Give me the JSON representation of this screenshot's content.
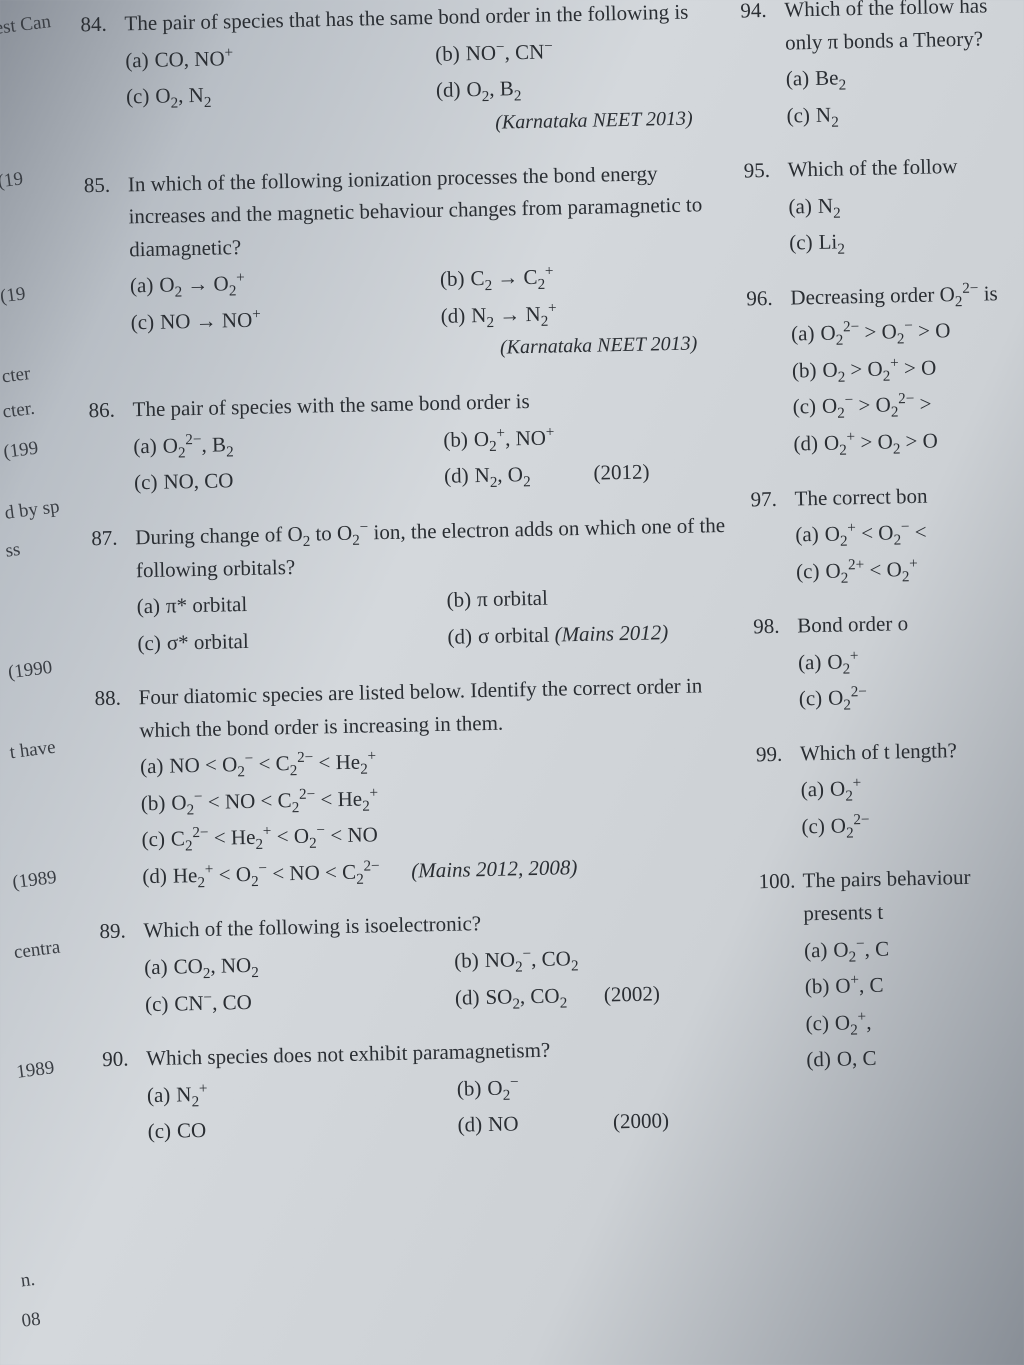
{
  "leftEdge": [
    "est Can",
    "(19",
    "(19",
    "cter",
    "cter.",
    "(199",
    "d by sp",
    "ss",
    "(1990",
    "t have",
    "(1989",
    "centra",
    "1989",
    "n.",
    "08"
  ],
  "questions": {
    "q84": {
      "num": "84.",
      "stem": "The pair of species that has the same bond order in the following is",
      "opts": [
        {
          "l": "(a)",
          "t": "CO, NO<sup>+</sup>"
        },
        {
          "l": "(b)",
          "t": "NO<sup>−</sup>, CN<sup>−</sup>"
        },
        {
          "l": "(c)",
          "t": "O<sub>2</sub>, N<sub>2</sub>"
        },
        {
          "l": "(d)",
          "t": "O<sub>2</sub>, B<sub>2</sub>"
        }
      ],
      "src": "(Karnataka NEET 2013)"
    },
    "q85": {
      "num": "85.",
      "stem": "In which of the following ionization processes the bond energy increases and the magnetic behaviour changes from paramagnetic to diamagnetic?",
      "opts": [
        {
          "l": "(a)",
          "t": "O<sub>2</sub> → O<sub>2</sub><sup>+</sup>"
        },
        {
          "l": "(b)",
          "t": "C<sub>2</sub> → C<sub>2</sub><sup>+</sup>"
        },
        {
          "l": "(c)",
          "t": "NO → NO<sup>+</sup>"
        },
        {
          "l": "(d)",
          "t": "N<sub>2</sub> → N<sub>2</sub><sup>+</sup>"
        }
      ],
      "src": "(Karnataka NEET 2013)"
    },
    "q86": {
      "num": "86.",
      "stem": "The pair of species with the same bond order is",
      "opts": [
        {
          "l": "(a)",
          "t": "O<sub>2</sub><sup>2−</sup>, B<sub>2</sub>"
        },
        {
          "l": "(b)",
          "t": "O<sub>2</sub><sup>+</sup>, NO<sup>+</sup>"
        },
        {
          "l": "(c)",
          "t": "NO, CO"
        },
        {
          "l": "(d)",
          "t": "N<sub>2</sub>, O<sub>2</sub>&nbsp;&nbsp;&nbsp;&nbsp;&nbsp;&nbsp;&nbsp;&nbsp;&nbsp;&nbsp;&nbsp;&nbsp;(2012)"
        }
      ]
    },
    "q87": {
      "num": "87.",
      "stem": "During change of O<sub>2</sub> to O<sub>2</sub><sup>−</sup> ion, the electron adds on which one of the following orbitals?",
      "opts": [
        {
          "l": "(a)",
          "t": "π* orbital"
        },
        {
          "l": "(b)",
          "t": "π orbital"
        },
        {
          "l": "(c)",
          "t": "σ* orbital"
        },
        {
          "l": "(d)",
          "t": "σ orbital <i>(Mains 2012)</i>"
        }
      ]
    },
    "q88": {
      "num": "88.",
      "stem": "Four diatomic species are listed below. Identify the correct order in which the bond order is increasing in them.",
      "opts": [
        {
          "l": "(a)",
          "t": "NO &lt; O<sub>2</sub><sup>−</sup> &lt; C<sub>2</sub><sup>2−</sup> &lt; He<sub>2</sub><sup>+</sup>"
        },
        {
          "l": "(b)",
          "t": "O<sub>2</sub><sup>−</sup> &lt; NO &lt; C<sub>2</sub><sup>2−</sup> &lt; He<sub>2</sub><sup>+</sup>"
        },
        {
          "l": "(c)",
          "t": "C<sub>2</sub><sup>2−</sup> &lt; He<sub>2</sub><sup>+</sup> &lt; O<sub>2</sub><sup>−</sup> &lt; NO"
        },
        {
          "l": "(d)",
          "t": "He<sub>2</sub><sup>+</sup> &lt; O<sub>2</sub><sup>−</sup> &lt; NO &lt; C<sub>2</sub><sup>2−</sup>&nbsp;&nbsp;&nbsp;&nbsp;&nbsp;&nbsp;<i>(Mains 2012, 2008)</i>"
        }
      ],
      "single": true
    },
    "q89": {
      "num": "89.",
      "stem": "Which of the following is isoelectronic?",
      "opts": [
        {
          "l": "(a)",
          "t": "CO<sub>2</sub>, NO<sub>2</sub>"
        },
        {
          "l": "(b)",
          "t": "NO<sub>2</sub><sup>−</sup>, CO<sub>2</sub>"
        },
        {
          "l": "(c)",
          "t": "CN<sup>−</sup>, CO"
        },
        {
          "l": "(d)",
          "t": "SO<sub>2</sub>, CO<sub>2</sub>&nbsp;&nbsp;&nbsp;&nbsp;&nbsp;&nbsp;&nbsp;(2002)"
        }
      ]
    },
    "q90": {
      "num": "90.",
      "stem": "Which species does not exhibit paramagnetism?",
      "opts": [
        {
          "l": "(a)",
          "t": "N<sub>2</sub><sup>+</sup>"
        },
        {
          "l": "(b)",
          "t": "O<sub>2</sub><sup>−</sup>"
        },
        {
          "l": "(c)",
          "t": "CO"
        },
        {
          "l": "(d)",
          "t": "NO&nbsp;&nbsp;&nbsp;&nbsp;&nbsp;&nbsp;&nbsp;&nbsp;&nbsp;&nbsp;&nbsp;&nbsp;&nbsp;&nbsp;&nbsp;&nbsp;&nbsp;&nbsp;(2000)"
        }
      ]
    },
    "q94": {
      "num": "94.",
      "stem": "Which of the follow has only π bonds a Theory?",
      "opts": [
        {
          "l": "(a)",
          "t": "Be<sub>2</sub>"
        },
        {
          "l": "(c)",
          "t": "N<sub>2</sub>"
        }
      ],
      "single": true
    },
    "q95": {
      "num": "95.",
      "stem": "Which of the follow",
      "opts": [
        {
          "l": "(a)",
          "t": "N<sub>2</sub>"
        },
        {
          "l": "(c)",
          "t": "Li<sub>2</sub>"
        }
      ],
      "single": true
    },
    "q96": {
      "num": "96.",
      "stem": "Decreasing order O<sub>2</sub><sup>2−</sup> is",
      "opts": [
        {
          "l": "(a)",
          "t": "O<sub>2</sub><sup>2−</sup> &gt; O<sub>2</sub><sup>−</sup> &gt; O"
        },
        {
          "l": "(b)",
          "t": "O<sub>2</sub> &gt; O<sub>2</sub><sup>+</sup> &gt; O"
        },
        {
          "l": "(c)",
          "t": "O<sub>2</sub><sup>−</sup> &gt; O<sub>2</sub><sup>2−</sup> &gt;"
        },
        {
          "l": "(d)",
          "t": "O<sub>2</sub><sup>+</sup> &gt; O<sub>2</sub> &gt; O"
        }
      ],
      "single": true
    },
    "q97": {
      "num": "97.",
      "stem": "The correct bon",
      "opts": [
        {
          "l": "(a)",
          "t": "O<sub>2</sub><sup>+</sup> &lt; O<sub>2</sub><sup>−</sup> &lt;"
        },
        {
          "l": "(c)",
          "t": "O<sub>2</sub><sup>2+</sup> &lt; O<sub>2</sub><sup>+</sup>"
        }
      ],
      "single": true
    },
    "q98": {
      "num": "98.",
      "stem": "Bond order o",
      "opts": [
        {
          "l": "(a)",
          "t": "O<sub>2</sub><sup>+</sup>"
        },
        {
          "l": "(c)",
          "t": "O<sub>2</sub><sup>2−</sup>"
        }
      ],
      "single": true
    },
    "q99": {
      "num": "99.",
      "stem": "Which of t length?",
      "opts": [
        {
          "l": "(a)",
          "t": "O<sub>2</sub><sup>+</sup>"
        },
        {
          "l": "(c)",
          "t": "O<sub>2</sub><sup>2−</sup>"
        }
      ],
      "single": true
    },
    "q100": {
      "num": "100.",
      "stem": "The pairs behaviour presents t",
      "opts": [
        {
          "l": "(a)",
          "t": "O<sub>2</sub><sup>−</sup>, C"
        },
        {
          "l": "(b)",
          "t": "O<sup>+</sup>, C"
        },
        {
          "l": "(c)",
          "t": "O<sub>2</sub><sup>+</sup>,"
        },
        {
          "l": "(d)",
          "t": "O, C"
        }
      ],
      "single": true
    }
  },
  "leftEdgePositions": [
    15,
    170,
    285,
    365,
    400,
    440,
    500,
    540,
    660,
    740,
    870,
    940,
    1060,
    1270,
    1310
  ]
}
